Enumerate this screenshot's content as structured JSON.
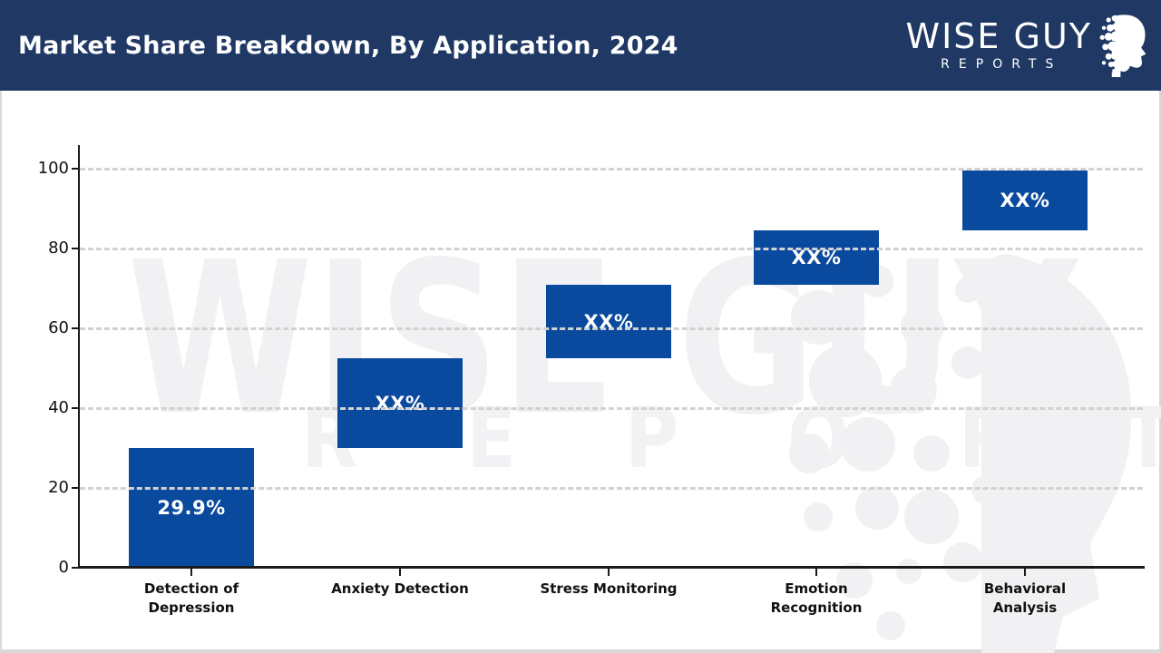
{
  "header": {
    "title": "Market Share Breakdown, By Application, 2024",
    "bg_color": "#1f3864",
    "logo": {
      "line1": "WISE GUY",
      "line2": "REPORTS",
      "icon": "dotted-head-profile"
    }
  },
  "watermark": {
    "line1": "WISE GUY",
    "line2": "REPORTS"
  },
  "chart_data": {
    "type": "bar",
    "subtype": "waterfall",
    "title": "Market Share Breakdown, By Application, 2024",
    "xlabel": "",
    "ylabel": "",
    "ylim": [
      0,
      105
    ],
    "yticks": [
      0,
      20,
      40,
      60,
      80,
      100
    ],
    "grid": "horizontal-dashed, drawn over bars",
    "legend": "none",
    "bar_color": "#0a4a9e",
    "bar_label_color": "#ffffff",
    "categories": [
      "Detection of\nDepression",
      "Anxiety Detection",
      "Stress Monitoring",
      "Emotion\nRecognition",
      "Behavioral\nAnalysis"
    ],
    "segments": [
      {
        "category": "Detection of Depression",
        "start": 0,
        "end": 29.9,
        "value": 29.9,
        "label": "29.9%"
      },
      {
        "category": "Anxiety Detection",
        "start": 29.9,
        "end": 52.4,
        "value": 22.5,
        "label": "XX%"
      },
      {
        "category": "Stress Monitoring",
        "start": 52.4,
        "end": 71.0,
        "value": 18.6,
        "label": "XX%"
      },
      {
        "category": "Emotion Recognition",
        "start": 71.0,
        "end": 84.6,
        "value": 13.6,
        "label": "XX%"
      },
      {
        "category": "Behavioral Analysis",
        "start": 84.6,
        "end": 99.6,
        "value": 15.0,
        "label": "XX%"
      }
    ]
  }
}
